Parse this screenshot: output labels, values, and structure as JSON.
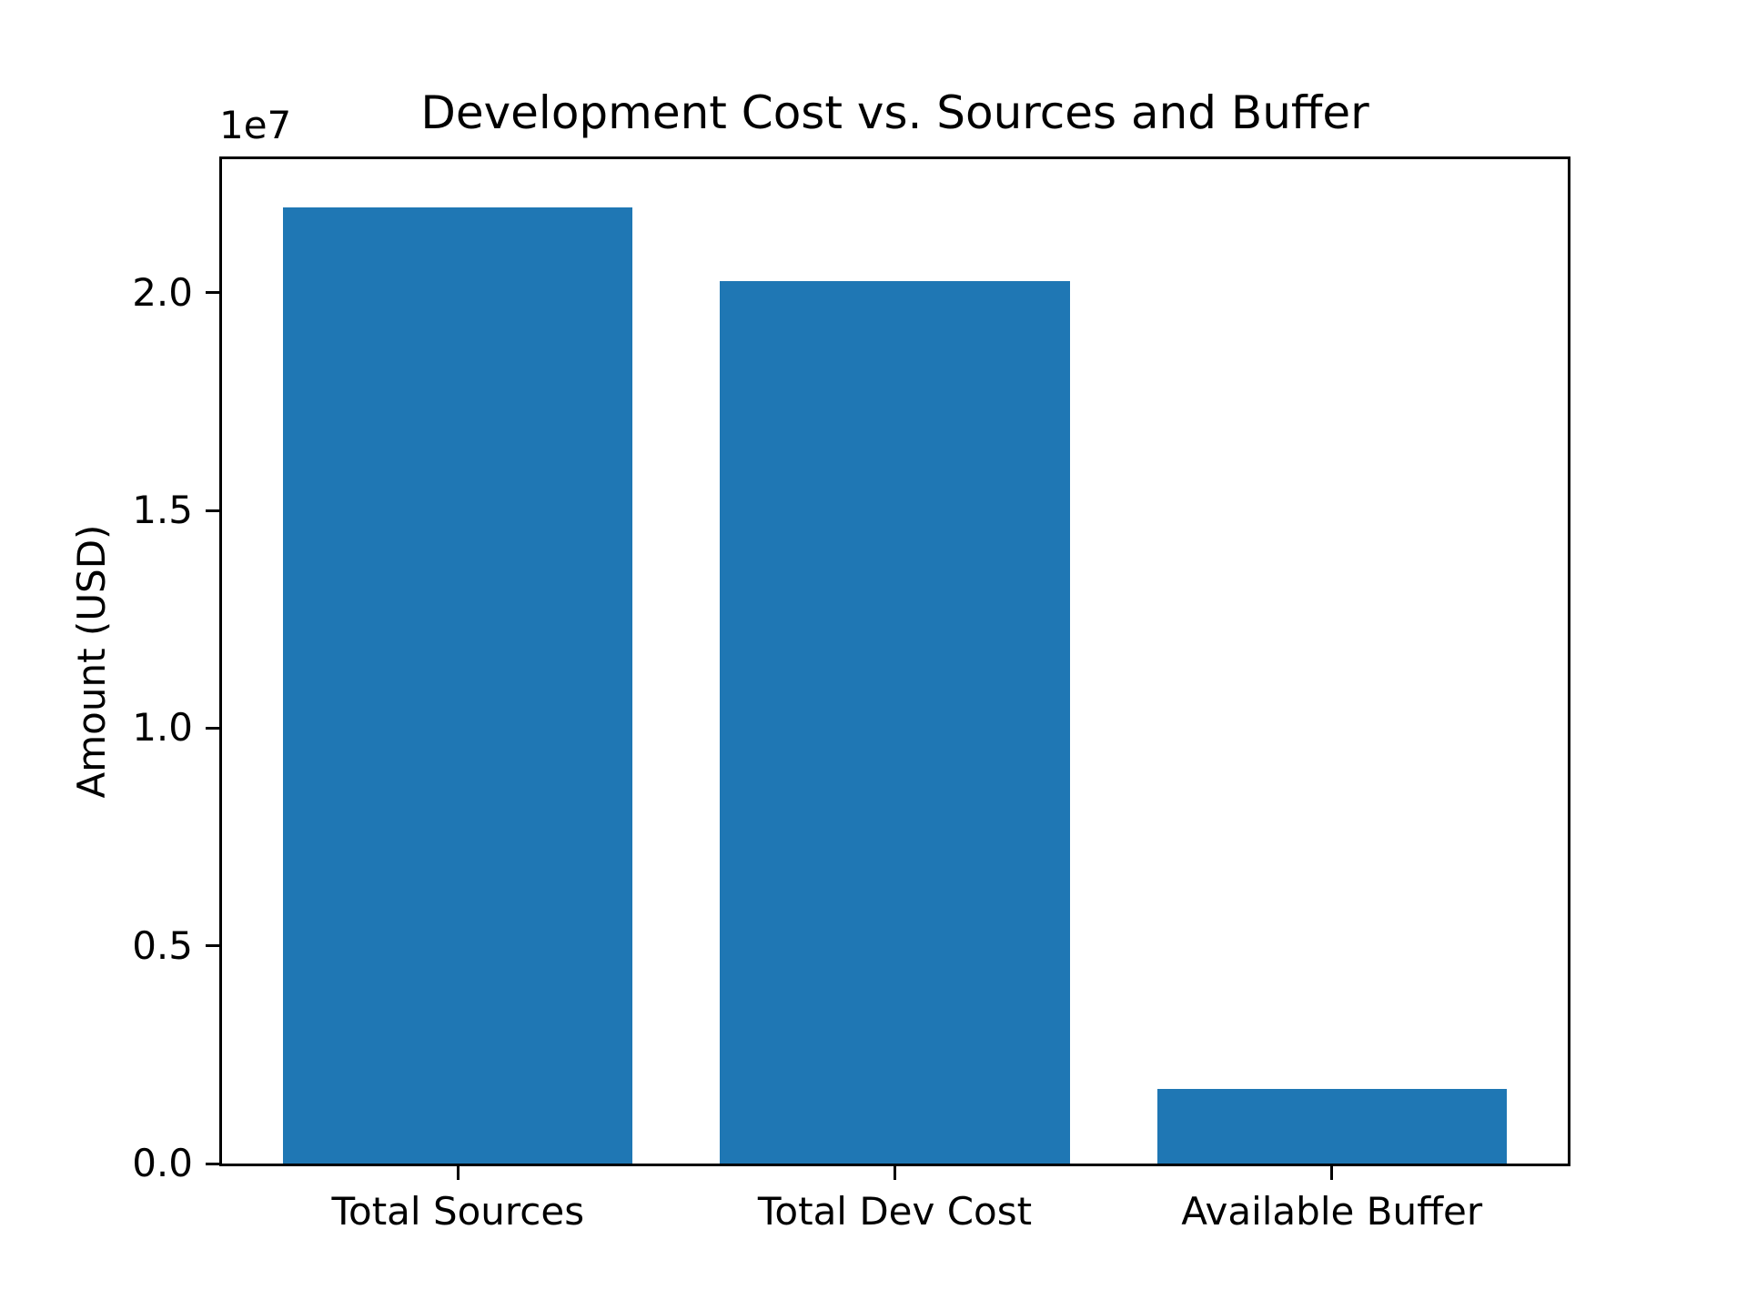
{
  "chart_data": {
    "type": "bar",
    "title": "Development Cost vs. Sources and Buffer",
    "xlabel": "",
    "ylabel": "Amount (USD)",
    "offset_text": "1e7",
    "categories": [
      "Total Sources",
      "Total Dev Cost",
      "Available Buffer"
    ],
    "values": [
      21970000,
      20260000,
      1710000
    ],
    "bar_color": "#1f77b4",
    "axis_color": "#000000",
    "background_color": "#ffffff",
    "ylim": [
      0,
      23068500
    ],
    "yticks": [
      {
        "value": 0,
        "label": "0.0"
      },
      {
        "value": 5000000,
        "label": "0.5"
      },
      {
        "value": 10000000,
        "label": "1.0"
      },
      {
        "value": 15000000,
        "label": "1.5"
      },
      {
        "value": 20000000,
        "label": "2.0"
      }
    ],
    "bar_width_fraction": 0.8,
    "x_margin_fraction": 0.14,
    "grid": false,
    "legend": null
  }
}
